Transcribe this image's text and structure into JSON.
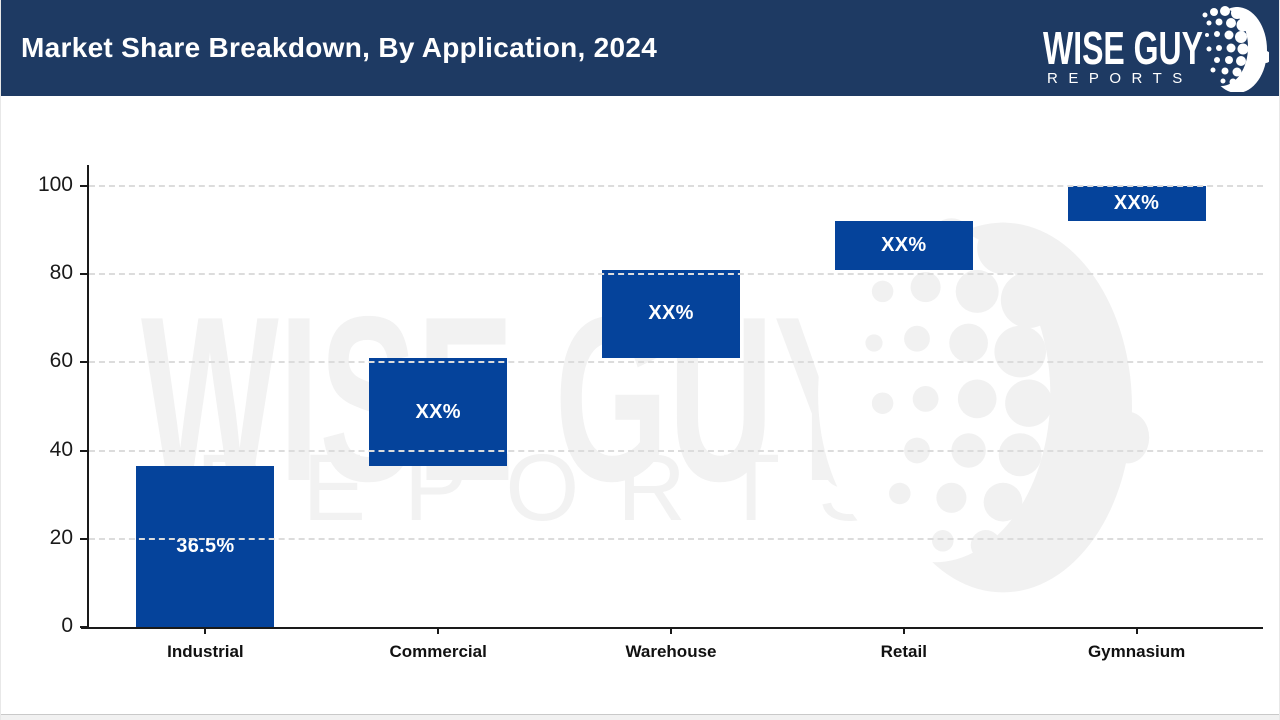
{
  "header": {
    "title": "Market Share Breakdown, By Application, 2024",
    "logo": {
      "line1": "WISE GUY",
      "line2": "REPORTS"
    }
  },
  "watermark": {
    "line1": "WISE GUY",
    "line2": "REPORTS"
  },
  "chart_data": {
    "type": "bar",
    "subtype": "waterfall-floating-bars",
    "title": "Market Share Breakdown, By Application, 2024",
    "categories": [
      "Industrial",
      "Commercial",
      "Warehouse",
      "Retail",
      "Gymnasium"
    ],
    "bars": [
      {
        "category": "Industrial",
        "start": 0,
        "end": 36.5,
        "label": "36.5%"
      },
      {
        "category": "Commercial",
        "start": 36.5,
        "end": 61,
        "label": "XX%"
      },
      {
        "category": "Warehouse",
        "start": 61,
        "end": 81,
        "label": "XX%"
      },
      {
        "category": "Retail",
        "start": 81,
        "end": 92,
        "label": "XX%"
      },
      {
        "category": "Gymnasium",
        "start": 92,
        "end": 100,
        "label": "XX%"
      }
    ],
    "xlabel": "",
    "ylabel": "",
    "ylim": [
      0,
      100
    ],
    "yticks": [
      0,
      20,
      40,
      60,
      80,
      100
    ],
    "grid": "horizontal-dashed",
    "legend": "none",
    "bar_color": "#05439b",
    "value_label_color": "#ffffff",
    "axis_color": "#1a1a1a",
    "gridline_color": "#dcdcdc"
  },
  "colors": {
    "header_bg": "#1e3a63",
    "page_bg": "#ffffff",
    "watermark": "#f2f2f2"
  }
}
